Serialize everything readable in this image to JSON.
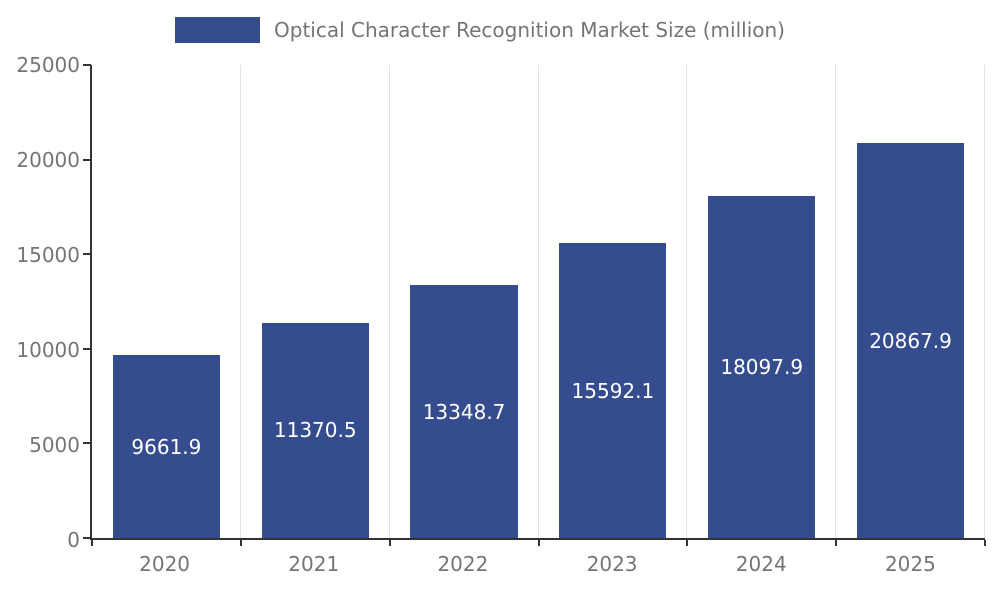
{
  "chart_data": {
    "type": "bar",
    "title": "Optical Character Recognition Market Size (million)",
    "categories": [
      "2020",
      "2021",
      "2022",
      "2023",
      "2024",
      "2025"
    ],
    "values": [
      9661.9,
      11370.5,
      13348.7,
      15592.1,
      18097.9,
      20867.9
    ],
    "value_labels": [
      "9661.9",
      "11370.5",
      "13348.7",
      "15592.1",
      "18097.9",
      "20867.9"
    ],
    "xlabel": "",
    "ylabel": "",
    "ylim": [
      0,
      25000
    ],
    "ytick_step": 5000,
    "ytick_labels": [
      "0",
      "5000",
      "10000",
      "15000",
      "20000",
      "25000"
    ],
    "grid": "vertical-only",
    "legend_position": "top",
    "colors": {
      "bar": "#354d8e",
      "value_label": "#ffffff",
      "axis_text": "#757575",
      "axis_line": "#333333",
      "gridline": "#e2e2e2",
      "background": "#ffffff"
    }
  }
}
